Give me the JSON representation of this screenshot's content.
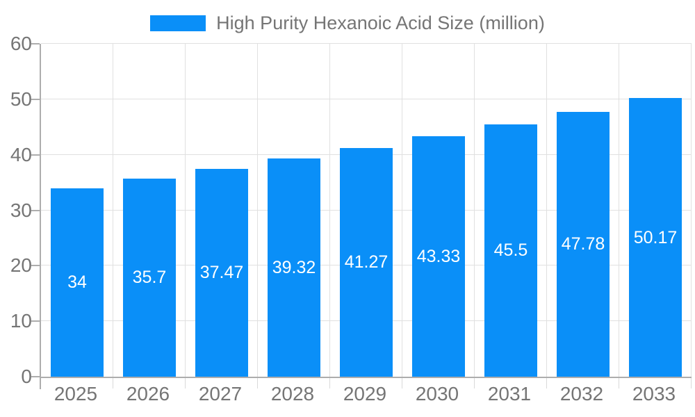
{
  "legend": {
    "label": "High Purity Hexanoic Acid Size (million)"
  },
  "colors": {
    "bar": "#0a8ff8",
    "grid": "#e0e0e0",
    "axis": "#adadad",
    "axis_text": "#757575",
    "bar_label_text": "#ffffff",
    "background": "#ffffff"
  },
  "chart_data": {
    "type": "bar",
    "title": "High Purity Hexanoic Acid Size (million)",
    "categories": [
      "2025",
      "2026",
      "2027",
      "2028",
      "2029",
      "2030",
      "2031",
      "2032",
      "2033"
    ],
    "series": [
      {
        "name": "High Purity Hexanoic Acid Size (million)",
        "values": [
          34,
          35.7,
          37.47,
          39.32,
          41.27,
          43.33,
          45.5,
          47.78,
          50.17
        ],
        "labels": [
          "34",
          "35.7",
          "37.47",
          "39.32",
          "41.27",
          "43.33",
          "45.5",
          "47.78",
          "50.17"
        ],
        "color": "#0a8ff8"
      }
    ],
    "xlabel": "",
    "ylabel": "",
    "ylim": [
      0,
      60
    ],
    "ytick_step": 10,
    "ytick_labels": [
      "0",
      "10",
      "20",
      "30",
      "40",
      "50",
      "60"
    ],
    "grid": "on",
    "legend_position": "top-center",
    "value_labels": "inside-bar-centered"
  }
}
